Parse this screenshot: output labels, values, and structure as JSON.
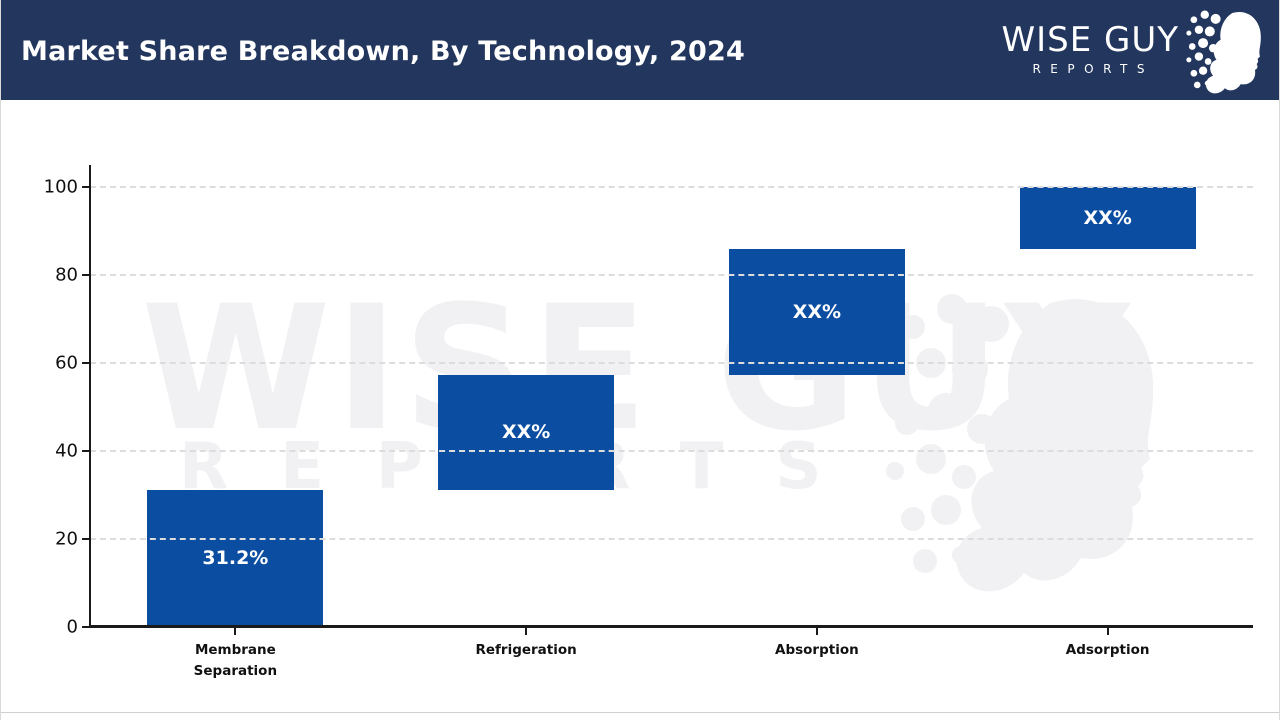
{
  "header": {
    "title": "Market Share Breakdown, By Technology, 2024",
    "logo": {
      "line1": "WISE GUY",
      "line2": "REPORTS"
    }
  },
  "watermark": {
    "line1": "WISE GUY",
    "line2": "REPORTS"
  },
  "colors": {
    "header_background": "#22365e",
    "bar_fill": "#0b4da1",
    "gridline": "#dcdcdc",
    "axis": "#1a1a1a",
    "watermark": "#f1f1f4",
    "bar_label_text": "#ffffff"
  },
  "chart_data": {
    "type": "bar",
    "subtype": "floating-waterfall",
    "title": "Market Share Breakdown, By Technology, 2024",
    "categories": [
      "Membrane Separation",
      "Refrigeration",
      "Absorption",
      "Adsorption"
    ],
    "segments": [
      {
        "category": "Membrane Separation",
        "start": 0,
        "end": 31.2,
        "label": "31.2%"
      },
      {
        "category": "Refrigeration",
        "start": 31.2,
        "end": 57.3,
        "label": "XX%"
      },
      {
        "category": "Absorption",
        "start": 57.3,
        "end": 85.9,
        "label": "XX%"
      },
      {
        "category": "Adsorption",
        "start": 85.9,
        "end": 100,
        "label": "XX%"
      }
    ],
    "xlabel": "",
    "ylabel": "",
    "ylim": [
      0,
      100
    ],
    "yticks": [
      0,
      20,
      40,
      60,
      80,
      100
    ],
    "grid": "horizontal-dashed",
    "grid_above_bars": true,
    "legend": null
  }
}
